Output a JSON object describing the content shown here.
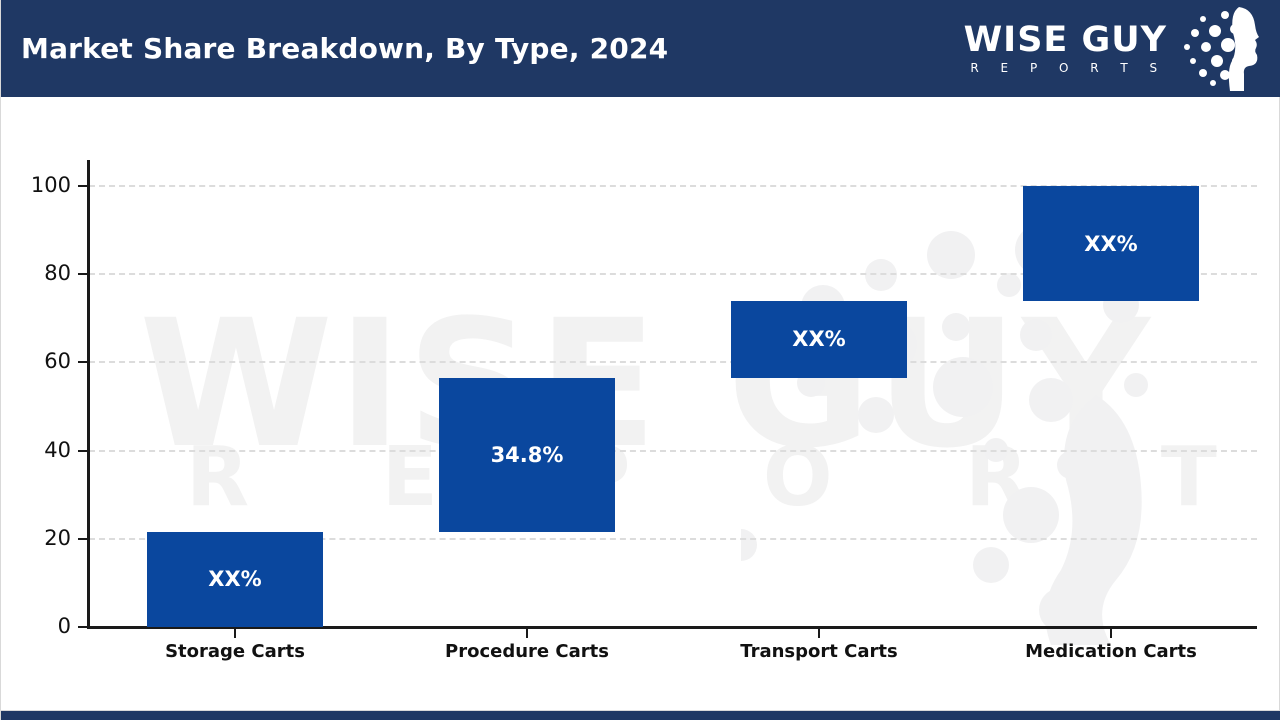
{
  "header": {
    "title": "Market Share Breakdown, By Type, 2024",
    "bg_color": "#1f3864",
    "logo": {
      "line1": "WISE GUY",
      "line2": "R E P O R T S"
    }
  },
  "watermark": {
    "line1": "WISE GUY",
    "line2": "R E P O R T S"
  },
  "footer": {
    "bg_color": "#1f3864"
  },
  "chart_data": {
    "type": "bar",
    "subtype": "waterfall",
    "title": "Market Share Breakdown, By Type, 2024",
    "categories": [
      "Storage Carts",
      "Procedure Carts",
      "Transport Carts",
      "Medication Carts"
    ],
    "series": [
      {
        "name": "Market Share (%)",
        "segments": [
          {
            "category": "Storage Carts",
            "start": 0,
            "end": 21.6,
            "label": "XX%"
          },
          {
            "category": "Procedure Carts",
            "start": 21.6,
            "end": 56.4,
            "label": "34.8%"
          },
          {
            "category": "Transport Carts",
            "start": 56.5,
            "end": 73.9,
            "label": "XX%"
          },
          {
            "category": "Medication Carts",
            "start": 73.9,
            "end": 100,
            "label": "XX%"
          }
        ]
      }
    ],
    "xlabel": "",
    "ylabel": "",
    "ylim": [
      0,
      106
    ],
    "yticks": [
      0,
      20,
      40,
      60,
      80,
      100
    ],
    "ytick_labels": [
      "0",
      "20",
      "40",
      "60",
      "80",
      "100"
    ],
    "grid": "horizontal-dashed",
    "gridline_color": "#dcdcdc",
    "bar_color": "#0a479e",
    "bar_label_color": "#ffffff",
    "axis_color": "#1a1a1a",
    "legend": "none"
  }
}
